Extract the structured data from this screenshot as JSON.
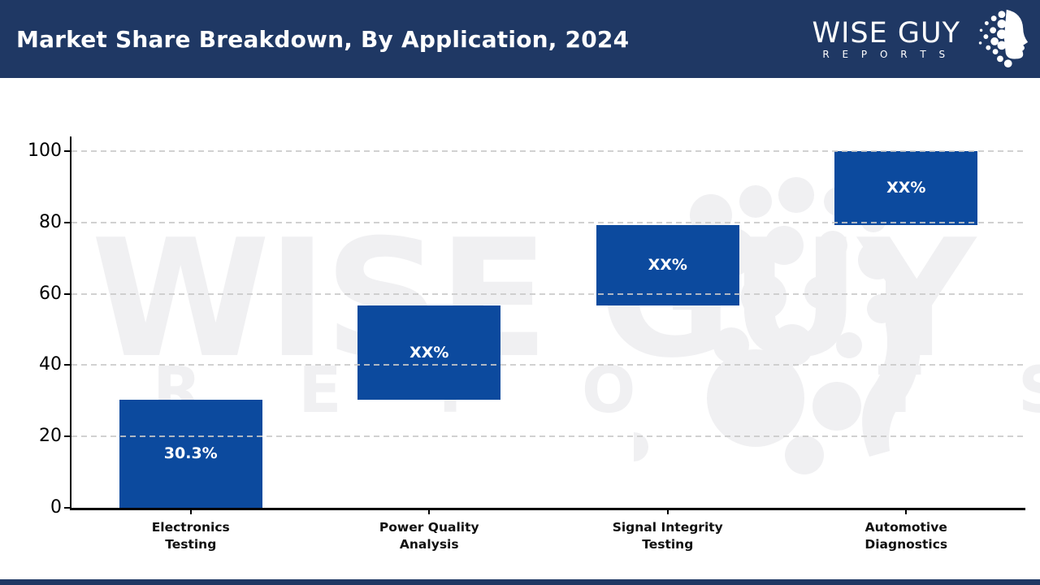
{
  "header": {
    "title": "Market Share Breakdown, By Application, 2024",
    "logo": {
      "title": "WISE GUY",
      "subtitle": "REPORTS"
    }
  },
  "watermark": {
    "title": "WISE GUY",
    "subtitle": "REPORTS"
  },
  "chart_data": {
    "type": "bar",
    "variant": "floating-segment-waterfall",
    "title": "Market Share Breakdown, By Application, 2024",
    "categories": [
      "Electronics Testing",
      "Power Quality Analysis",
      "Signal Integrity Testing",
      "Automotive Diagnostics"
    ],
    "category_lines": [
      [
        "Electronics",
        "Testing"
      ],
      [
        "Power Quality",
        "Analysis"
      ],
      [
        "Signal Integrity",
        "Testing"
      ],
      [
        "Automotive",
        "Diagnostics"
      ]
    ],
    "bars": [
      {
        "category": "Electronics Testing",
        "start": 0,
        "end": 30.3,
        "label": "30.3%"
      },
      {
        "category": "Power Quality Analysis",
        "start": 30.3,
        "end": 56.7,
        "label": "XX%"
      },
      {
        "category": "Signal Integrity Testing",
        "start": 56.7,
        "end": 79.3,
        "label": "XX%"
      },
      {
        "category": "Automotive Diagnostics",
        "start": 79.3,
        "end": 100,
        "label": "XX%"
      }
    ],
    "xlabel": "",
    "ylabel": "",
    "yticks": [
      0,
      20,
      40,
      60,
      80,
      100
    ],
    "ylim": [
      0,
      100
    ],
    "grid": "horizontal-dashed",
    "legend": false
  },
  "colors": {
    "header_bg": "#1f3864",
    "footer_bg": "#1f3864",
    "bar": "#0c4a9e",
    "bar_label": "#ffffff",
    "grid": "#c9c9c9",
    "axis": "#000000",
    "watermark": "#f0f0f2"
  }
}
